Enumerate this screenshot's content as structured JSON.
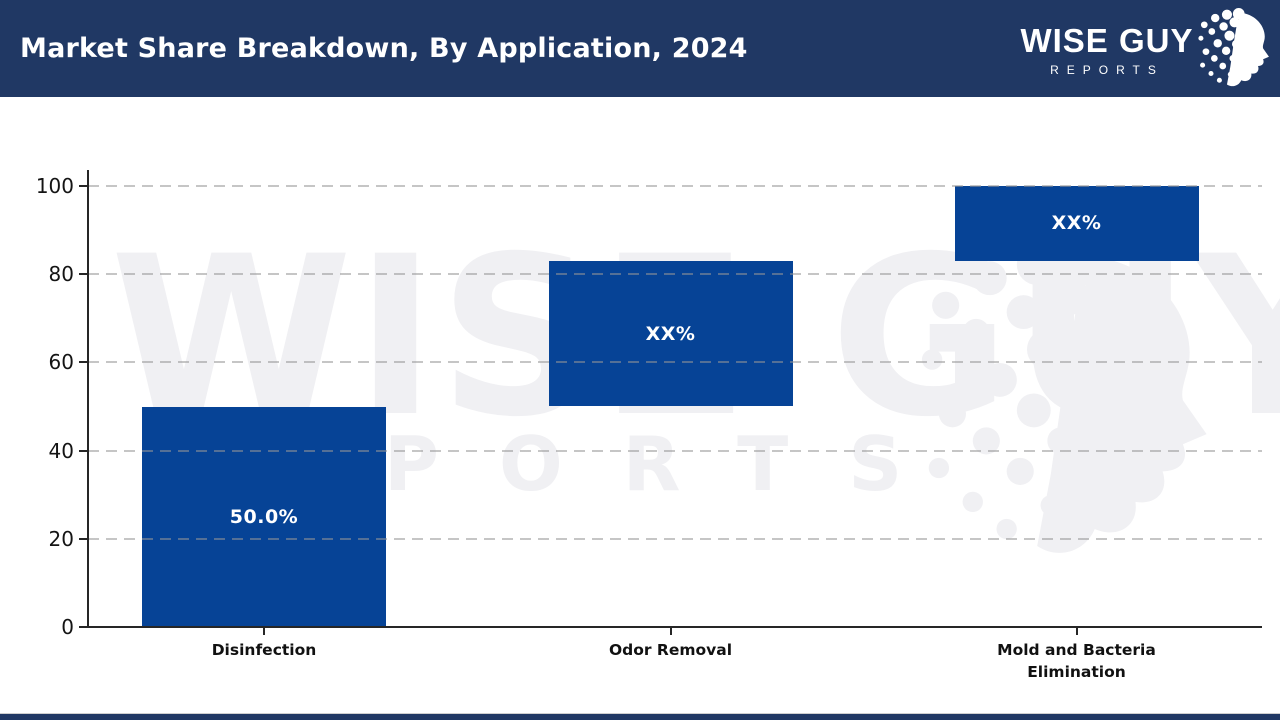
{
  "header": {
    "title": "Market Share Breakdown, By Application, 2024",
    "logo": {
      "name": "WISE GUY",
      "tagline": "REPORTS"
    }
  },
  "watermark": {
    "line1": "WISE GUY",
    "line2": "REPORTS"
  },
  "colors": {
    "header_bg": "#203864",
    "bar": "#064396",
    "grid": "#d9d9d9",
    "axis": "#262626",
    "bar_label": "#ffffff",
    "watermark": "#f0f0f3"
  },
  "chart_data": {
    "type": "bar",
    "subtype": "floating-waterfall",
    "title": "Market Share Breakdown, By Application, 2024",
    "categories": [
      "Disinfection",
      "Odor Removal",
      "Mold and Bacteria Elimination"
    ],
    "series": [
      {
        "name": "Market Share (%)",
        "segments": [
          {
            "category": "Disinfection",
            "start": 0,
            "end": 50,
            "value": 50,
            "label": "50.0%"
          },
          {
            "category": "Odor Removal",
            "start": 50,
            "end": 83,
            "value": 33,
            "label": "XX%"
          },
          {
            "category": "Mold and Bacteria Elimination",
            "start": 83,
            "end": 100,
            "value": 17,
            "label": "XX%"
          }
        ]
      }
    ],
    "xlabel": "",
    "ylabel": "",
    "ylim": [
      0,
      100
    ],
    "yticks": [
      0,
      20,
      40,
      60,
      80,
      100
    ],
    "grid": "dashed-horizontal",
    "legend": "none"
  }
}
